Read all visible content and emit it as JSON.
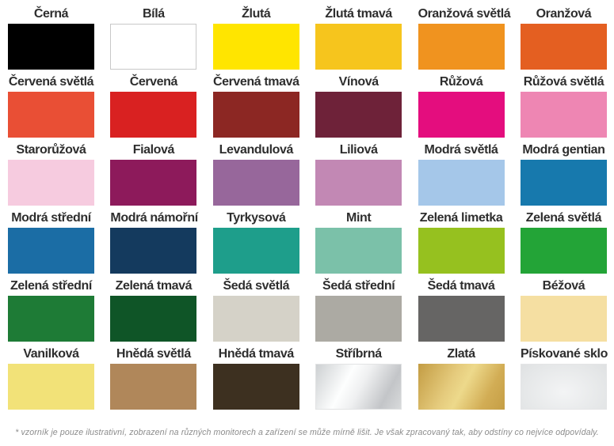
{
  "page": {
    "background": "#ffffff",
    "footnote": "* vzorník je pouze ilustrativní, zobrazení na různých monitorech a zařízení se může mírně lišit. Je však zpracovaný tak, aby odstíny co nejvíce odpovídaly."
  },
  "palette": {
    "label_color": "#2e2e2e",
    "columns": 6,
    "rows": 6,
    "swatches": [
      {
        "label": "Černá",
        "fill": "#000000"
      },
      {
        "label": "Bílá",
        "fill": "#ffffff",
        "border": "#c8c8c8"
      },
      {
        "label": "Žlutá",
        "fill": "#ffe500"
      },
      {
        "label": "Žlutá tmavá",
        "fill": "#f6c51d"
      },
      {
        "label": "Oranžová světlá",
        "fill": "#f0931f"
      },
      {
        "label": "Oranžová",
        "fill": "#e45f21"
      },
      {
        "label": "Červená světlá",
        "fill": "#e94f35"
      },
      {
        "label": "Červená",
        "fill": "#d92121"
      },
      {
        "label": "Červená tmavá",
        "fill": "#8c2723"
      },
      {
        "label": "Vínová",
        "fill": "#6e2239"
      },
      {
        "label": "Růžová",
        "fill": "#e40d7e"
      },
      {
        "label": "Růžová světlá",
        "fill": "#ee86b3"
      },
      {
        "label": "Starorůžová",
        "fill": "#f6cbdf"
      },
      {
        "label": "Fialová",
        "fill": "#8d1a5b"
      },
      {
        "label": "Levandulová",
        "fill": "#97679b"
      },
      {
        "label": "Liliová",
        "fill": "#c288b4"
      },
      {
        "label": "Modrá světlá",
        "fill": "#a5c7e9"
      },
      {
        "label": "Modrá gentian",
        "fill": "#1779ad"
      },
      {
        "label": "Modrá střední",
        "fill": "#1b6da5"
      },
      {
        "label": "Modrá námořní",
        "fill": "#143a5e"
      },
      {
        "label": "Tyrkysová",
        "fill": "#1e9e8b"
      },
      {
        "label": "Mint",
        "fill": "#7bc1a9"
      },
      {
        "label": "Zelená limetka",
        "fill": "#96c11f"
      },
      {
        "label": "Zelená světlá",
        "fill": "#23a437"
      },
      {
        "label": "Zelená střední",
        "fill": "#1e7b36"
      },
      {
        "label": "Zelená tmavá",
        "fill": "#0f5527"
      },
      {
        "label": "Šedá světlá",
        "fill": "#d5d2c8"
      },
      {
        "label": "Šedá střední",
        "fill": "#acaaa3"
      },
      {
        "label": "Šedá tmavá",
        "fill": "#666564"
      },
      {
        "label": "Béžová",
        "fill": "#f5dfa2"
      },
      {
        "label": "Vanilková",
        "fill": "#f2e278"
      },
      {
        "label": "Hnědá světlá",
        "fill": "#b0875a"
      },
      {
        "label": "Hnědá tmavá",
        "fill": "#3d3020"
      },
      {
        "label": "Stříbrná",
        "fill": "gradient-silver"
      },
      {
        "label": "Zlatá",
        "fill": "gradient-gold"
      },
      {
        "label": "Pískované sklo",
        "fill": "gradient-frosted-glass"
      }
    ]
  }
}
